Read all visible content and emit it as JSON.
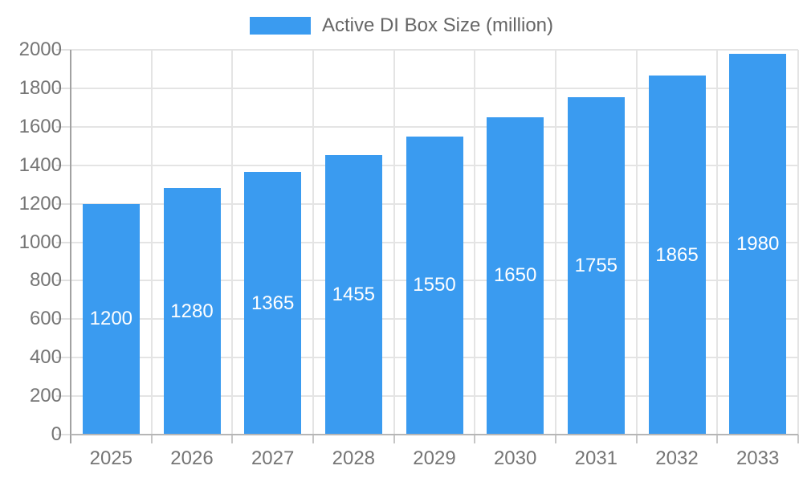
{
  "legend": {
    "label": "Active DI Box Size (million)"
  },
  "chart_data": {
    "type": "bar",
    "title": "",
    "xlabel": "",
    "ylabel": "",
    "categories": [
      "2025",
      "2026",
      "2027",
      "2028",
      "2029",
      "2030",
      "2031",
      "2032",
      "2033"
    ],
    "values": [
      1200,
      1280,
      1365,
      1455,
      1550,
      1650,
      1755,
      1865,
      1980
    ],
    "series_name": "Active DI Box Size (million)",
    "ylim": [
      0,
      2000
    ],
    "ytick_step": 200,
    "ytick_labels": [
      "0",
      "200",
      "400",
      "600",
      "800",
      "1000",
      "1200",
      "1400",
      "1600",
      "1800",
      "2000"
    ],
    "grid": true,
    "legend_position": "top-center",
    "data_label_position": "inside-center",
    "colors": {
      "bar": "#3a9bf0",
      "data_label": "#ffffff",
      "axis_text": "#757575",
      "legend_text": "#666666",
      "gridline": "#e4e4e4",
      "y_axis_line": "#a2a2a2",
      "x_axis_line": "#b6b6b6"
    }
  }
}
